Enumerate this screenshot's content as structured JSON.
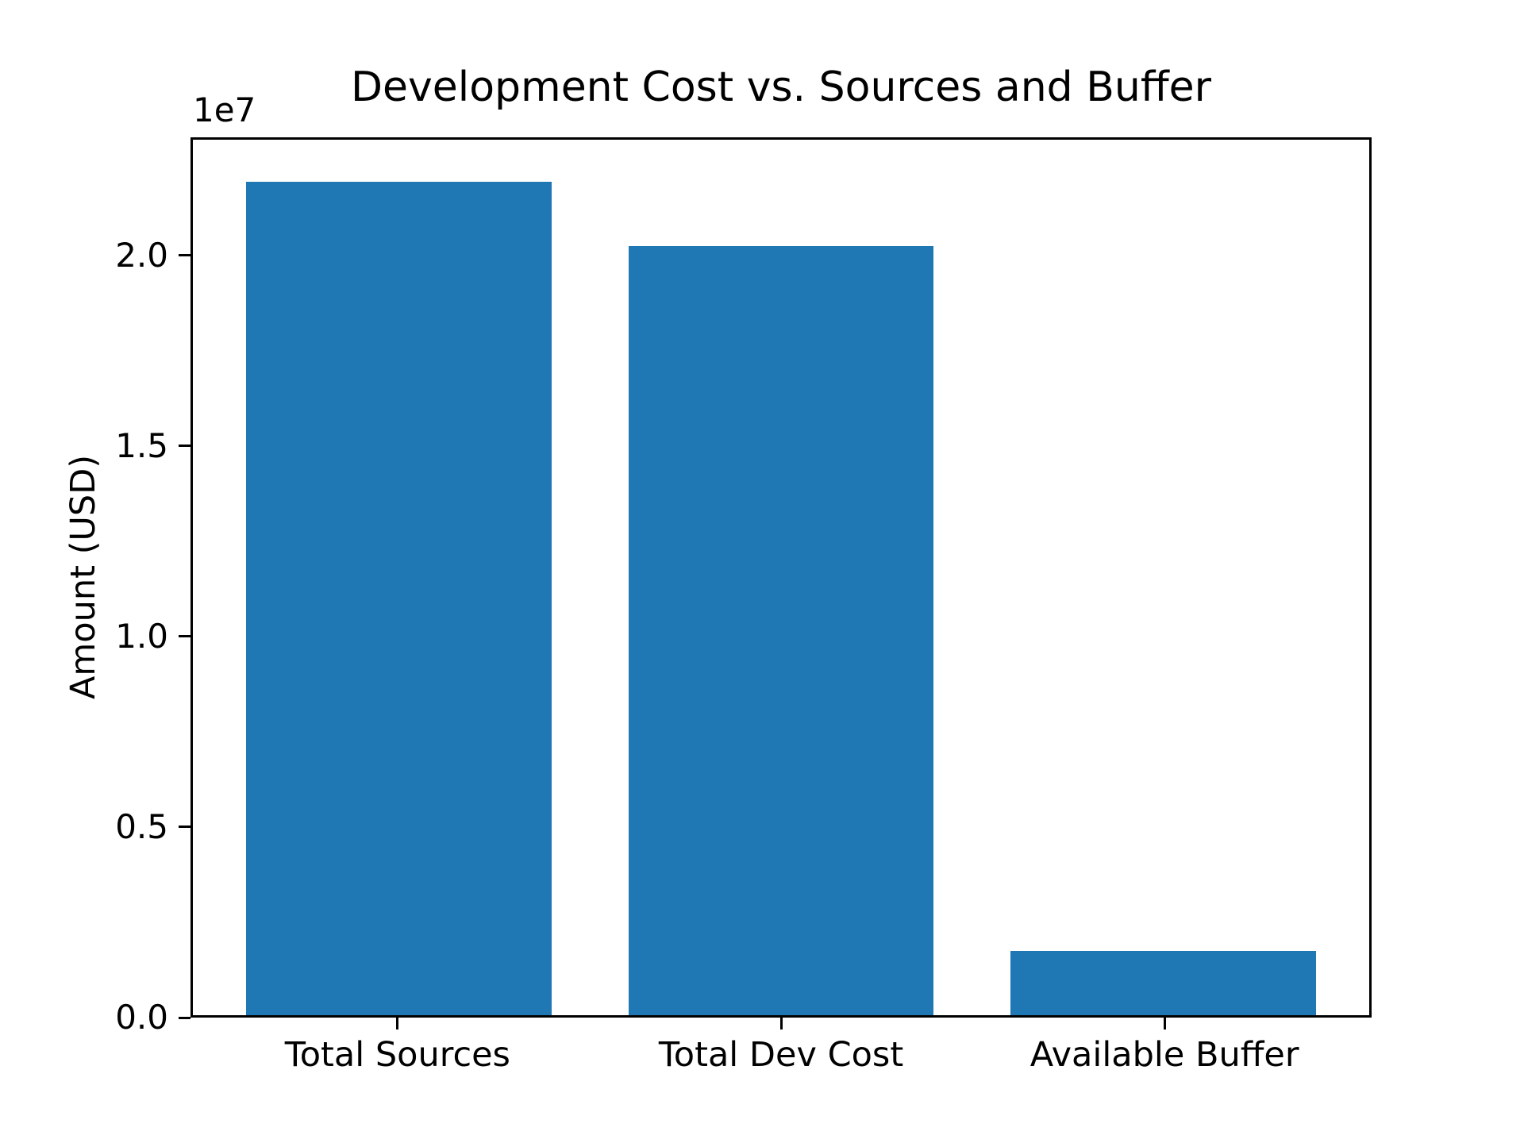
{
  "chart_data": {
    "type": "bar",
    "title": "Development Cost vs. Sources and Buffer",
    "ylabel": "Amount (USD)",
    "xlabel": "",
    "y_axis_offset_text": "1e7",
    "categories": [
      "Total Sources",
      "Total Dev Cost",
      "Available Buffer"
    ],
    "values": [
      22000000,
      20300000,
      1700000
    ],
    "bar_color": "#1f77b4",
    "axis_color": "#000000",
    "text_color": "#000000",
    "ylim": [
      0,
      23100000
    ],
    "yticks": {
      "values": [
        0,
        5000000,
        10000000,
        15000000,
        20000000
      ],
      "labels": [
        "0.0",
        "0.5",
        "1.0",
        "1.5",
        "2.0"
      ]
    },
    "bar_width_fraction": 0.8,
    "x_margin": 0.05,
    "grid": false,
    "legend": "none"
  }
}
